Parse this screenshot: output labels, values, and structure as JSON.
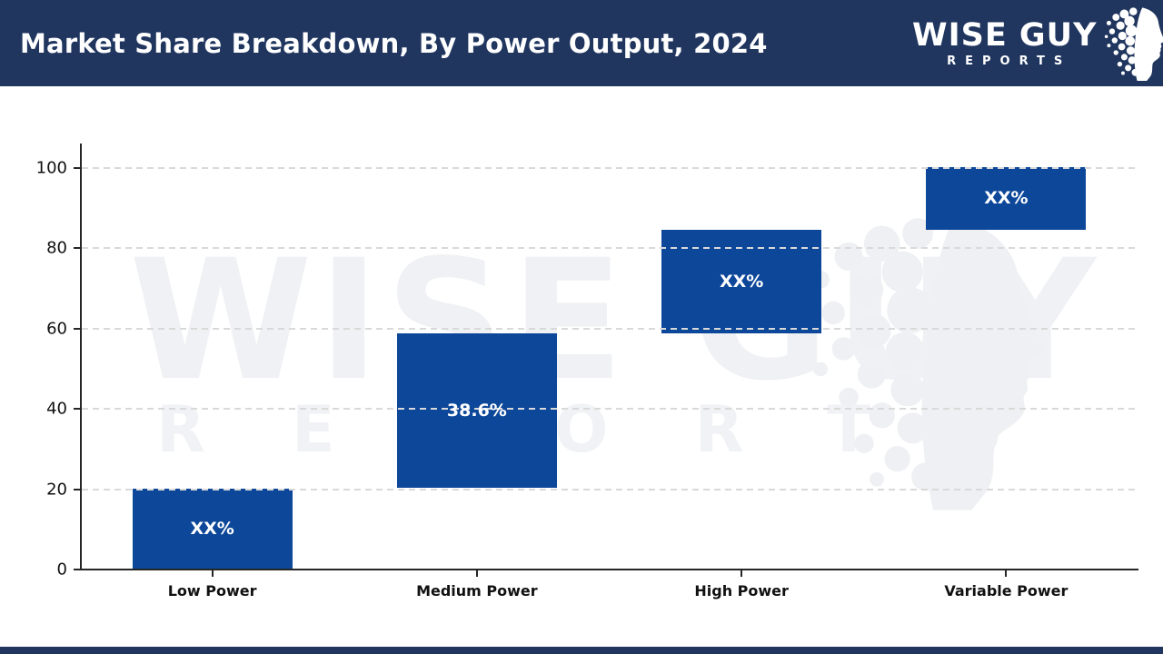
{
  "header": {
    "title": "Market Share Breakdown, By Power Output, 2024",
    "bg_color": "#20365f",
    "logo": {
      "name_line": "WISE GUY",
      "sub_line": "REPORTS"
    }
  },
  "watermark": {
    "name_line": "WISE GUY",
    "sub_line": "REPORTS",
    "color": "#eff1f4"
  },
  "chart_data": {
    "type": "bar",
    "subtype": "floating-waterfall",
    "title": "Market Share Breakdown, By Power Output, 2024",
    "categories": [
      "Low Power",
      "Medium Power",
      "High Power",
      "Variable Power"
    ],
    "values": [
      20,
      38.6,
      25.7,
      15.7
    ],
    "cumulative_start": [
      0,
      20,
      58.6,
      84.3
    ],
    "bar_labels": [
      "XX%",
      "38.6%",
      "XX%",
      "XX%"
    ],
    "yticks": [
      0,
      20,
      40,
      60,
      80,
      100
    ],
    "ylim": [
      0,
      105.5
    ],
    "xlabel": "",
    "ylabel": "",
    "unit": "percent",
    "grid": "horizontal-dashed-over-bars",
    "legend": "none",
    "bar_color": "#0d4799",
    "bar_label_color": "#ffffff",
    "grid_color": "#d9d9d9",
    "axis_color": "#262626"
  },
  "footer": {
    "bg_color": "#20365f"
  }
}
